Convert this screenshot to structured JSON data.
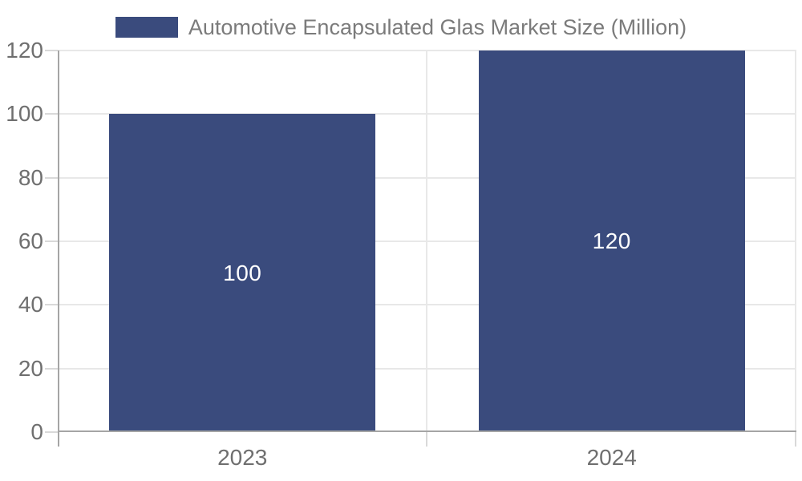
{
  "legend": {
    "label": "Automotive Encapsulated Glas Market Size (Million)"
  },
  "chart_data": {
    "type": "bar",
    "title": "",
    "categories": [
      "2023",
      "2024"
    ],
    "series": [
      {
        "name": "Automotive Encapsulated Glas Market Size (Million)",
        "values": [
          100,
          120
        ]
      }
    ],
    "value_labels": [
      "100",
      "120"
    ],
    "xlabel": "",
    "ylabel": "",
    "ylim": [
      0,
      120
    ],
    "yticks": [
      0,
      20,
      40,
      60,
      80,
      100,
      120
    ],
    "grid": true,
    "legend_position": "top-center",
    "colors": {
      "bar": "#3A4B7D",
      "axis_line": "#A5A5A5",
      "grid_line": "#E8E8E8",
      "tick_line": "#D9D9D9",
      "axis_text": "#6F6F6F",
      "legend_text": "#7B7B7B",
      "value_label_text": "#FFFFFF",
      "background": "#FFFFFF"
    }
  }
}
